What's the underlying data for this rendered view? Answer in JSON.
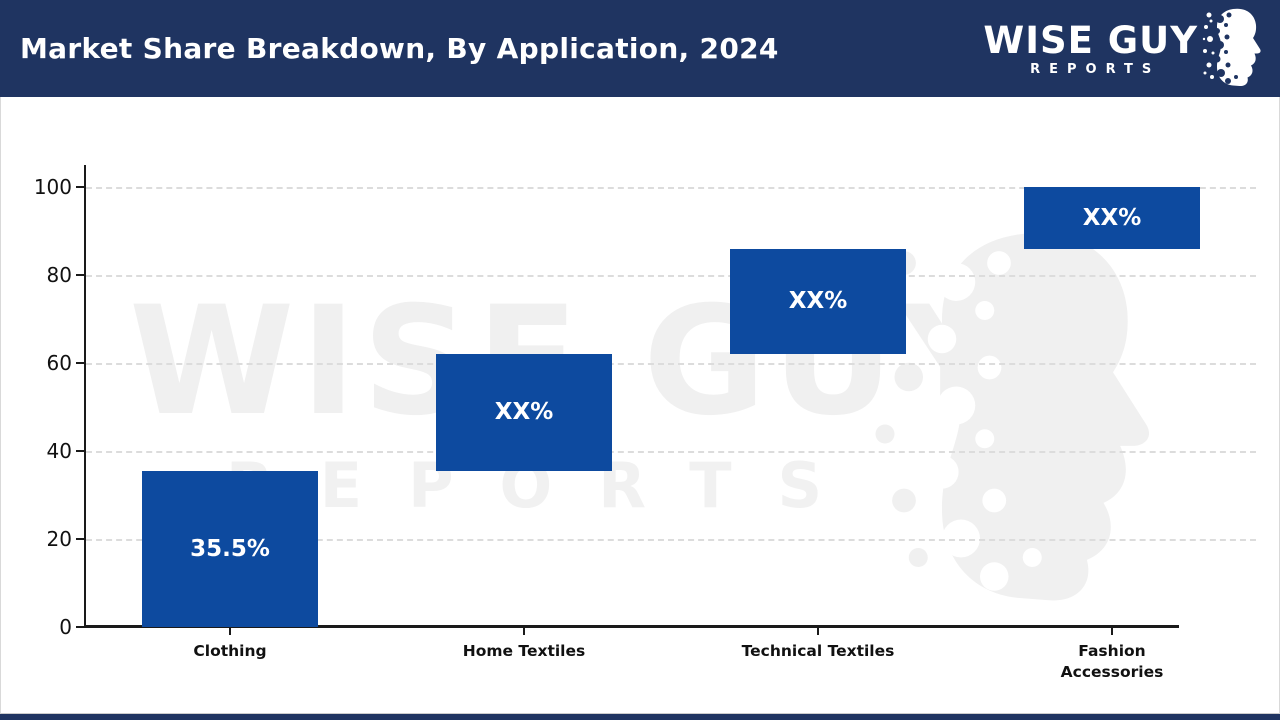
{
  "header": {
    "title": "Market Share Breakdown, By Application, 2024",
    "logo_line1": "WISE GUY",
    "logo_line2": "REPORTS"
  },
  "watermark": {
    "line1": "WISE GUY",
    "line2": "REPORTS"
  },
  "chart_data": {
    "type": "bar",
    "subtype": "floating-segment-waterfall",
    "title": "Market Share Breakdown, By Application, 2024",
    "categories": [
      "Clothing",
      "Home Textiles",
      "Technical Textiles",
      "Fashion Accessories"
    ],
    "bars": [
      {
        "category": "Clothing",
        "from": 0,
        "to": 35.5,
        "label": "35.5%"
      },
      {
        "category": "Home Textiles",
        "from": 35.5,
        "to": 62,
        "label": "XX%"
      },
      {
        "category": "Technical Textiles",
        "from": 62,
        "to": 86,
        "label": "XX%"
      },
      {
        "category": "Fashion Accessories",
        "from": 86,
        "to": 100,
        "label": "XX%"
      }
    ],
    "ylim": [
      0,
      100
    ],
    "yticks": [
      0,
      20,
      40,
      60,
      80,
      100
    ],
    "grid": "horizontal-dashed",
    "legend": "none",
    "bar_color": "#0d4a9f",
    "bar_label_color": "#ffffff"
  },
  "colors": {
    "header_bg": "#1f3461",
    "footer_bg": "#1f3461",
    "axis": "#1a1a1a",
    "grid": "#dcdcdc",
    "watermark": "#f0f0f0"
  }
}
